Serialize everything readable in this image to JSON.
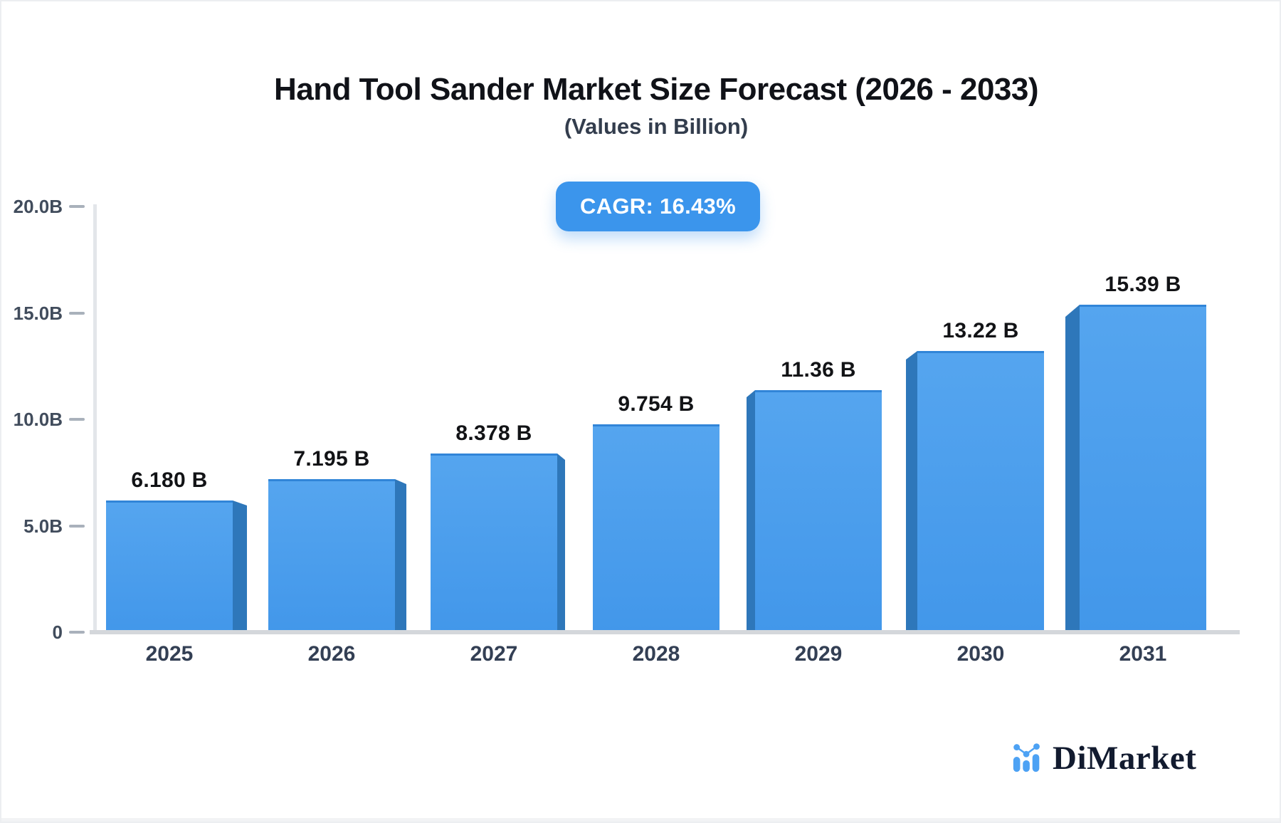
{
  "page": {
    "background": "#ffffff",
    "frame_color": "#eceef1"
  },
  "header": {
    "title": "Hand Tool Sander Market Size Forecast (2026 - 2033)",
    "subtitle": "(Values in Billion)"
  },
  "badge": {
    "label": "CAGR: 16.43%",
    "bg": "#3b95ec",
    "text_color": "#ffffff"
  },
  "chart_data": {
    "type": "bar",
    "title": "Hand Tool Sander Market Size Forecast (2026 - 2033)",
    "subtitle": "(Values in Billion)",
    "cagr_percent": 16.43,
    "categories": [
      "2025",
      "2026",
      "2027",
      "2028",
      "2029",
      "2030",
      "2031"
    ],
    "values": [
      6.18,
      7.195,
      8.378,
      9.754,
      11.36,
      13.22,
      15.39
    ],
    "value_labels": [
      "6.180 B",
      "7.195 B",
      "8.378 B",
      "9.754 B",
      "11.36 B",
      "13.22 B",
      "15.39 B"
    ],
    "xlabel": "",
    "ylabel": "",
    "ylim": [
      0,
      20
    ],
    "y_ticks": [
      {
        "label": "20.0B",
        "value": 20
      },
      {
        "label": "15.0B",
        "value": 15
      },
      {
        "label": "10.0B",
        "value": 10
      },
      {
        "label": "5.0B",
        "value": 5
      },
      {
        "label": "0",
        "value": 0
      }
    ],
    "grid": false,
    "legend": false,
    "bar_style": {
      "front_top": "#55a5ef",
      "front_bottom": "#4297ea",
      "top_edge": "#3185d8",
      "side": "#2e77ba",
      "effect": "3d-perspective-center"
    },
    "axis_line_color": "#d4d7db",
    "tick_color": "#a9b1bb",
    "tick_label_color": "#414c5c"
  },
  "logo": {
    "brand": "DiMarket",
    "icon": "bar-line-chart-icon",
    "icon_color": "#4da2f4",
    "text_color": "#121b2f"
  }
}
